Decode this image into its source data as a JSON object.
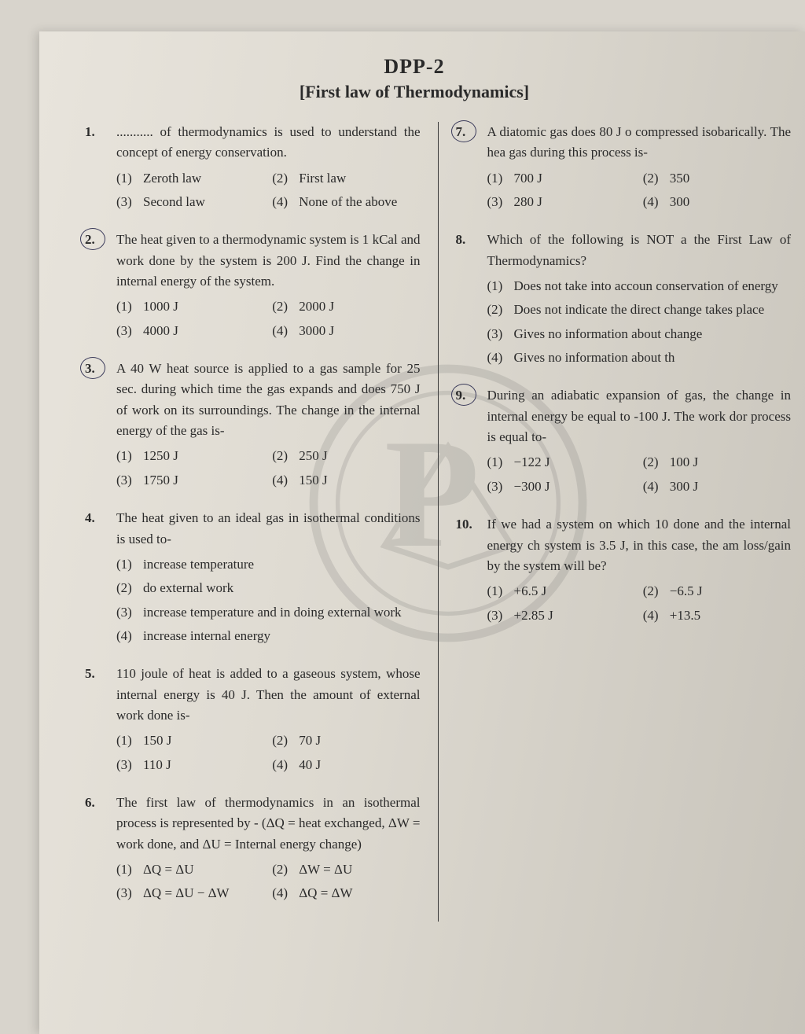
{
  "header": {
    "dpp": "DPP-2",
    "subtitle": "[First law of Thermodynamics]"
  },
  "left": [
    {
      "num": "1.",
      "circled": false,
      "stem": "........... of thermodynamics is used to understand the concept of energy conservation.",
      "opts": [
        {
          "n": "(1)",
          "t": "Zeroth law"
        },
        {
          "n": "(2)",
          "t": "First law"
        },
        {
          "n": "(3)",
          "t": "Second law"
        },
        {
          "n": "(4)",
          "t": "None of the above"
        }
      ]
    },
    {
      "num": "2.",
      "circled": true,
      "stem": "The heat given to a thermodynamic system is 1 kCal and work done by the system is 200 J. Find the change in internal energy of the system.",
      "opts": [
        {
          "n": "(1)",
          "t": "1000 J"
        },
        {
          "n": "(2)",
          "t": "2000 J"
        },
        {
          "n": "(3)",
          "t": "4000 J"
        },
        {
          "n": "(4)",
          "t": "3000 J"
        }
      ]
    },
    {
      "num": "3.",
      "circled": true,
      "stem": "A 40 W heat source is applied to a gas sample for 25 sec. during which time the gas expands and does 750 J of work on its surroundings. The change in the internal energy of the gas is-",
      "opts": [
        {
          "n": "(1)",
          "t": "1250 J"
        },
        {
          "n": "(2)",
          "t": "250 J"
        },
        {
          "n": "(3)",
          "t": "1750 J"
        },
        {
          "n": "(4)",
          "t": "150 J"
        }
      ]
    },
    {
      "num": "4.",
      "circled": false,
      "stem": "The heat given to an ideal gas in isothermal conditions is used to-",
      "single": true,
      "opts": [
        {
          "n": "(1)",
          "t": "increase temperature"
        },
        {
          "n": "(2)",
          "t": "do external work"
        },
        {
          "n": "(3)",
          "t": "increase temperature and in doing external work"
        },
        {
          "n": "(4)",
          "t": "increase internal energy"
        }
      ]
    },
    {
      "num": "5.",
      "circled": false,
      "stem": "110 joule of heat is added to a gaseous system, whose internal energy is 40 J. Then the amount of external work done is-",
      "opts": [
        {
          "n": "(1)",
          "t": "150 J"
        },
        {
          "n": "(2)",
          "t": "70 J"
        },
        {
          "n": "(3)",
          "t": "110 J"
        },
        {
          "n": "(4)",
          "t": "40 J"
        }
      ]
    },
    {
      "num": "6.",
      "circled": false,
      "stem": "The first law of thermodynamics in an isothermal process is represented by - (ΔQ = heat exchanged, ΔW = work done, and ΔU = Internal energy change)",
      "opts": [
        {
          "n": "(1)",
          "t": "ΔQ = ΔU"
        },
        {
          "n": "(2)",
          "t": "ΔW = ΔU"
        },
        {
          "n": "(3)",
          "t": "ΔQ = ΔU − ΔW"
        },
        {
          "n": "(4)",
          "t": "ΔQ = ΔW"
        }
      ]
    }
  ],
  "right": [
    {
      "num": "7.",
      "circled": true,
      "stem": "A diatomic gas does 80 J o compressed isobarically. The hea gas during this process is-",
      "opts": [
        {
          "n": "(1)",
          "t": "700 J"
        },
        {
          "n": "(2)",
          "t": "350"
        },
        {
          "n": "(3)",
          "t": "280 J"
        },
        {
          "n": "(4)",
          "t": "300"
        }
      ]
    },
    {
      "num": "8.",
      "circled": false,
      "stem": "Which of the following is NOT a the First Law of Thermodynamics?",
      "single": true,
      "opts": [
        {
          "n": "(1)",
          "t": "Does not take into accoun conservation of energy"
        },
        {
          "n": "(2)",
          "t": "Does not indicate the direct change takes place"
        },
        {
          "n": "(3)",
          "t": "Gives no information about change"
        },
        {
          "n": "(4)",
          "t": "Gives no information about th"
        }
      ]
    },
    {
      "num": "9.",
      "circled": true,
      "stem": "During an adiabatic expansion of gas, the change in internal energy be equal to -100 J. The work dor process is equal to-",
      "opts": [
        {
          "n": "(1)",
          "t": "−122 J"
        },
        {
          "n": "(2)",
          "t": "100 J"
        },
        {
          "n": "(3)",
          "t": "−300 J"
        },
        {
          "n": "(4)",
          "t": "300 J"
        }
      ]
    },
    {
      "num": "10.",
      "circled": false,
      "stem": "If we had a system on which 10 done and the internal energy ch system is 3.5 J, in this case, the am loss/gain by the system will be?",
      "opts": [
        {
          "n": "(1)",
          "t": "+6.5 J"
        },
        {
          "n": "(2)",
          "t": "−6.5 J"
        },
        {
          "n": "(3)",
          "t": "+2.85 J"
        },
        {
          "n": "(4)",
          "t": "+13.5"
        }
      ]
    }
  ]
}
